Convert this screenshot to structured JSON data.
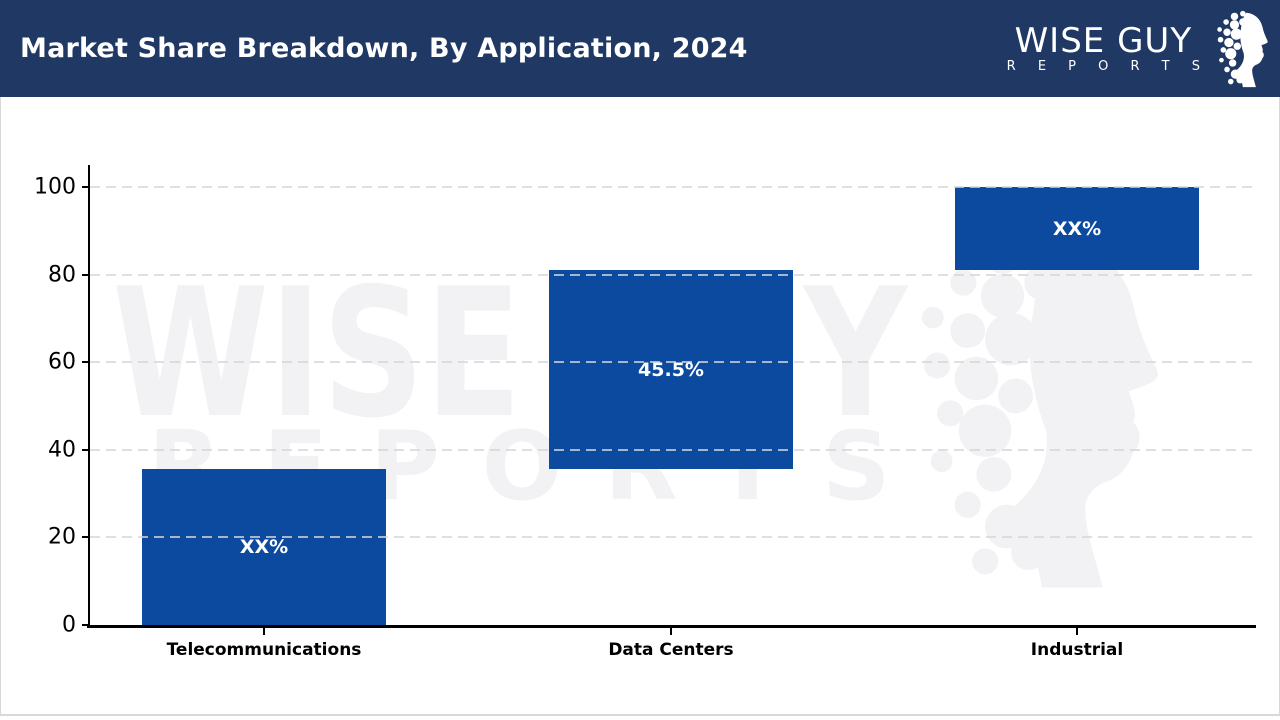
{
  "header": {
    "title": "Market Share Breakdown, By Application, 2024",
    "logo": {
      "line1": "WISE GUY",
      "line2": "R E P O R T S"
    }
  },
  "watermark": {
    "line1": "WISE GUY",
    "line2": "REPORTS"
  },
  "colors": {
    "header_bg": "#203864",
    "bar": "#0b4a9e",
    "grid": "#dcdcdc",
    "axis": "#000000",
    "watermark": "#f2f2f4",
    "title_text": "#ffffff"
  },
  "chart_data": {
    "type": "bar",
    "subtype": "stacked-waterfall",
    "title": "Market Share Breakdown, By Application, 2024",
    "categories": [
      "Telecommunications",
      "Data Centers",
      "Industrial"
    ],
    "segments": [
      {
        "category": "Telecommunications",
        "start": 0,
        "value": 35.5,
        "label": "XX%"
      },
      {
        "category": "Data Centers",
        "start": 35.5,
        "value": 45.5,
        "label": "45.5%"
      },
      {
        "category": "Industrial",
        "start": 81,
        "value": 19,
        "label": "XX%"
      }
    ],
    "xlabel": "",
    "ylabel": "",
    "ylim": [
      0,
      105
    ],
    "yticks": [
      0,
      20,
      40,
      60,
      80,
      100
    ],
    "grid": "horizontal-dashed, drawn over bars",
    "legend": "none",
    "bar_color": "#0b4a9e",
    "value_label_color": "#ffffff",
    "notes": "XX% labels are masked values in the source report; segments stack waterfall-style to 100%"
  }
}
